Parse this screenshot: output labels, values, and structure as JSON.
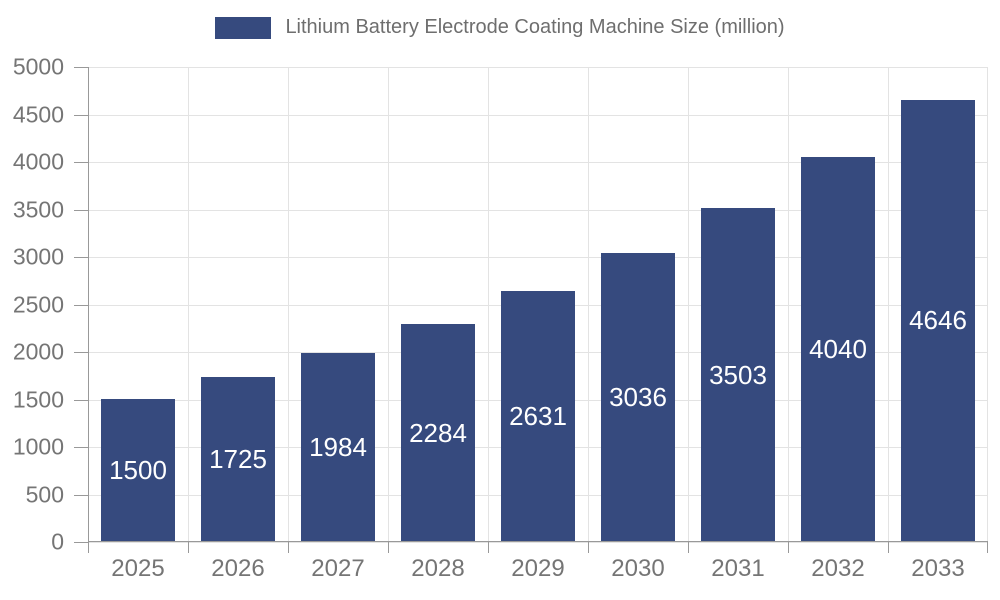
{
  "chart_data": {
    "type": "bar",
    "legend": "Lithium Battery Electrode Coating Machine Size (million)",
    "categories": [
      "2025",
      "2026",
      "2027",
      "2028",
      "2029",
      "2030",
      "2031",
      "2032",
      "2033"
    ],
    "values": [
      1500,
      1725,
      1984,
      2284,
      2631,
      3036,
      3503,
      4040,
      4646
    ],
    "ylim": [
      0,
      5000
    ],
    "yticks": [
      0,
      500,
      1000,
      1500,
      2000,
      2500,
      3000,
      3500,
      4000,
      4500,
      5000
    ],
    "grid": true,
    "legend_position": "top-center",
    "colors": {
      "bar": "#364A7E",
      "value_label": "#FFFFFF",
      "axis_label": "#757575",
      "legend_text": "#6E6E6E",
      "grid": "#E3E3E3",
      "axis_line": "#999999",
      "background": "#FFFFFF"
    }
  }
}
